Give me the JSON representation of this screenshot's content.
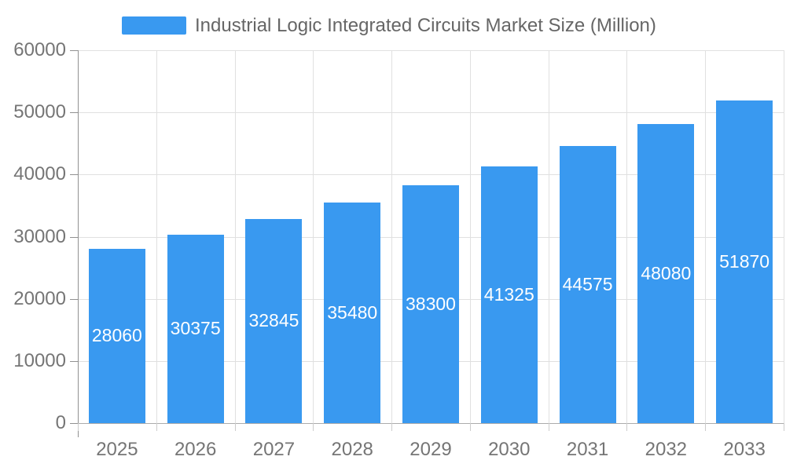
{
  "chart_data": {
    "type": "bar",
    "title": "Industrial Logic Integrated Circuits Market Size (Million)",
    "legend_label": "Industrial Logic Integrated Circuits Market Size (Million)",
    "categories": [
      "2025",
      "2026",
      "2027",
      "2028",
      "2029",
      "2030",
      "2031",
      "2032",
      "2033"
    ],
    "values": [
      28060,
      30375,
      32845,
      35480,
      38300,
      41325,
      44575,
      48080,
      51870
    ],
    "xlabel": "",
    "ylabel": "",
    "ylim": [
      0,
      60000
    ],
    "yticks": [
      0,
      10000,
      20000,
      30000,
      40000,
      50000,
      60000
    ],
    "grid": true,
    "legend_position": "top",
    "value_label_position": "inside-center",
    "colors": {
      "bar": "#3999F0",
      "grid": "#E0E0E0",
      "y_axis": "#919191",
      "x_axis": "#ABABAB",
      "x_tick": "#CCCCCC",
      "axis_text": "#757575",
      "legend_text": "#666666",
      "value_text": "#FFFFFF",
      "background": "#FFFFFF"
    }
  }
}
